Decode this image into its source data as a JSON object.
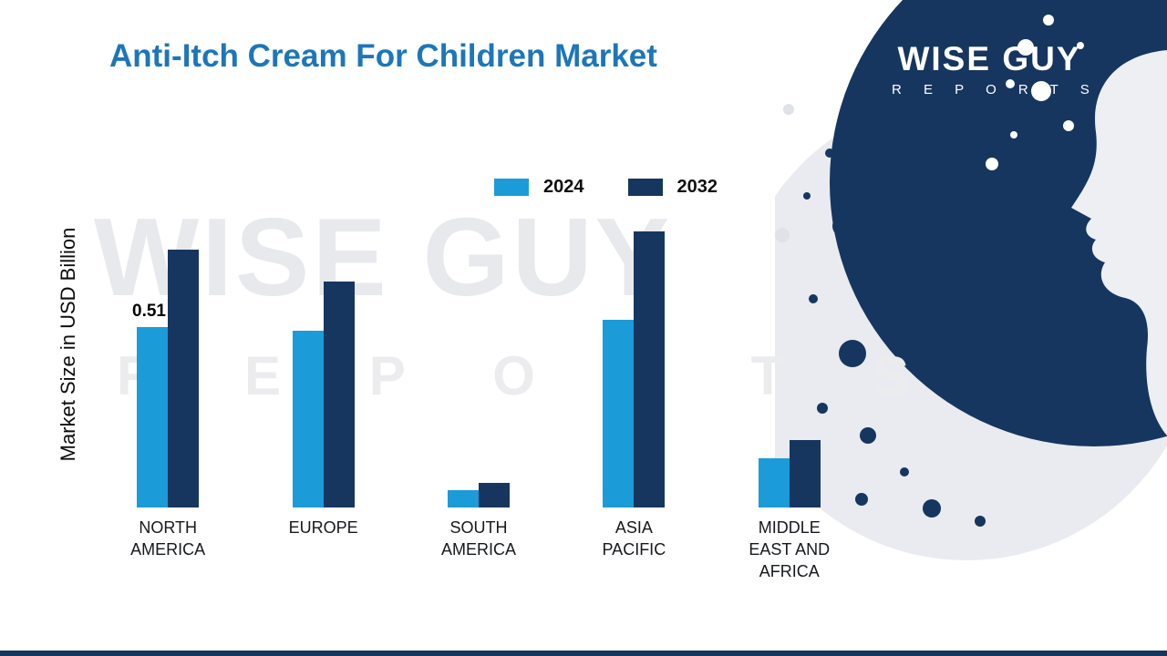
{
  "page": {
    "title": "Anti-Itch Cream For Children Market",
    "bottom_bar_color": "#16365f"
  },
  "logo": {
    "line1": "WISE GUY",
    "line2": "R E P O R T S"
  },
  "watermark": {
    "line1": "WISE GUY",
    "line2": "R E P O R T S"
  },
  "chart_data": {
    "type": "bar",
    "title": "Anti-Itch Cream For Children Market",
    "xlabel": "",
    "ylabel": "Market Size in USD Billion",
    "ylim": [
      0,
      0.85
    ],
    "grid": false,
    "legend_position": "top",
    "categories": [
      "NORTH AMERICA",
      "EUROPE",
      "SOUTH AMERICA",
      "ASIA PACIFIC",
      "MIDDLE EAST AND AFRICA"
    ],
    "series": [
      {
        "name": "2024",
        "color": "#1b9cd9",
        "values": [
          0.51,
          0.5,
          0.05,
          0.53,
          0.14
        ]
      },
      {
        "name": "2032",
        "color": "#16365f",
        "values": [
          0.73,
          0.64,
          0.07,
          0.78,
          0.19
        ]
      }
    ],
    "annotations": [
      {
        "category": "NORTH AMERICA",
        "series": "2024",
        "text": "0.51"
      }
    ]
  }
}
